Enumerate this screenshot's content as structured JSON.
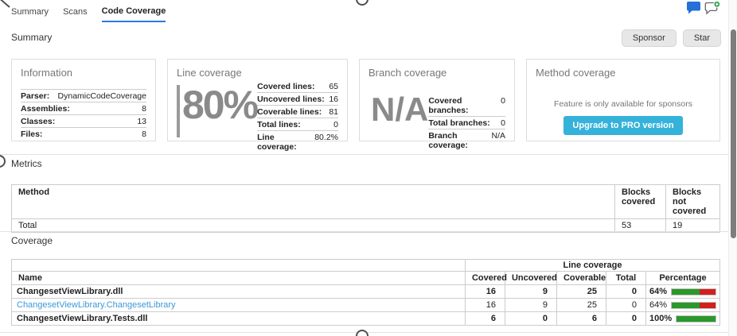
{
  "tabs": {
    "items": [
      {
        "label": "Summary",
        "active": false
      },
      {
        "label": "Scans",
        "active": false
      },
      {
        "label": "Code Coverage",
        "active": true
      }
    ]
  },
  "icons": {
    "feedback": "chat-bubble-icon",
    "suggest_feature": "chat-bubble-plus-icon"
  },
  "toolbar": {
    "sponsor_label": "Sponsor",
    "star_label": "Star"
  },
  "sections": {
    "summary_heading": "Summary",
    "metrics_heading": "Metrics",
    "coverage_heading": "Coverage"
  },
  "cards": {
    "information": {
      "title": "Information",
      "rows": [
        {
          "label": "Parser:",
          "value": "DynamicCodeCoverage"
        },
        {
          "label": "Assemblies:",
          "value": "8"
        },
        {
          "label": "Classes:",
          "value": "13"
        },
        {
          "label": "Files:",
          "value": "8"
        }
      ]
    },
    "line_coverage": {
      "title": "Line coverage",
      "big_value": "80%",
      "rows": [
        {
          "label": "Covered lines:",
          "value": "65"
        },
        {
          "label": "Uncovered lines:",
          "value": "16"
        },
        {
          "label": "Coverable lines:",
          "value": "81"
        },
        {
          "label": "Total lines:",
          "value": "0"
        },
        {
          "label": "Line coverage:",
          "value": "80.2%"
        }
      ]
    },
    "branch_coverage": {
      "title": "Branch coverage",
      "big_value": "N/A",
      "rows": [
        {
          "label": "Covered branches:",
          "value": "0"
        },
        {
          "label": "Total branches:",
          "value": "0"
        },
        {
          "label": "Branch coverage:",
          "value": "N/A"
        }
      ]
    },
    "method_coverage": {
      "title": "Method coverage",
      "note": "Feature is only available for sponsors",
      "upgrade_label": "Upgrade to PRO version"
    }
  },
  "metrics_table": {
    "columns": {
      "method": "Method",
      "blocks_covered": "Blocks covered",
      "blocks_not_covered": "Blocks not covered"
    },
    "total_row": {
      "name": "Total",
      "blocks_covered": "53",
      "blocks_not_covered": "19"
    }
  },
  "coverage_table": {
    "group_header": "Line coverage",
    "columns": {
      "name": "Name",
      "covered": "Covered",
      "uncovered": "Uncovered",
      "coverable": "Coverable",
      "total": "Total",
      "percentage": "Percentage"
    },
    "rows": [
      {
        "name": "ChangesetViewLibrary.dll",
        "kind": "assembly",
        "covered": "16",
        "uncovered": "9",
        "coverable": "25",
        "total": "0",
        "percentage": "64%",
        "pct_green": 64
      },
      {
        "name": "ChangesetViewLibrary.ChangesetLibrary",
        "kind": "class",
        "covered": "16",
        "uncovered": "9",
        "coverable": "25",
        "total": "0",
        "percentage": "64%",
        "pct_green": 64
      },
      {
        "name": "ChangesetViewLibrary.Tests.dll",
        "kind": "assembly",
        "covered": "6",
        "uncovered": "0",
        "coverable": "6",
        "total": "0",
        "percentage": "100%",
        "pct_green": 100
      }
    ]
  },
  "colors": {
    "tab_active_underline": "#2a7ae2",
    "link_blue": "#3b99d8",
    "bar_green": "#2b982b",
    "bar_red": "#d21f1f",
    "upgrade_button": "#35b2da",
    "big_value_gray": "#8a8a8a",
    "feedback_icon_blue": "#2470d8",
    "plus_badge_green": "#2da44e"
  }
}
